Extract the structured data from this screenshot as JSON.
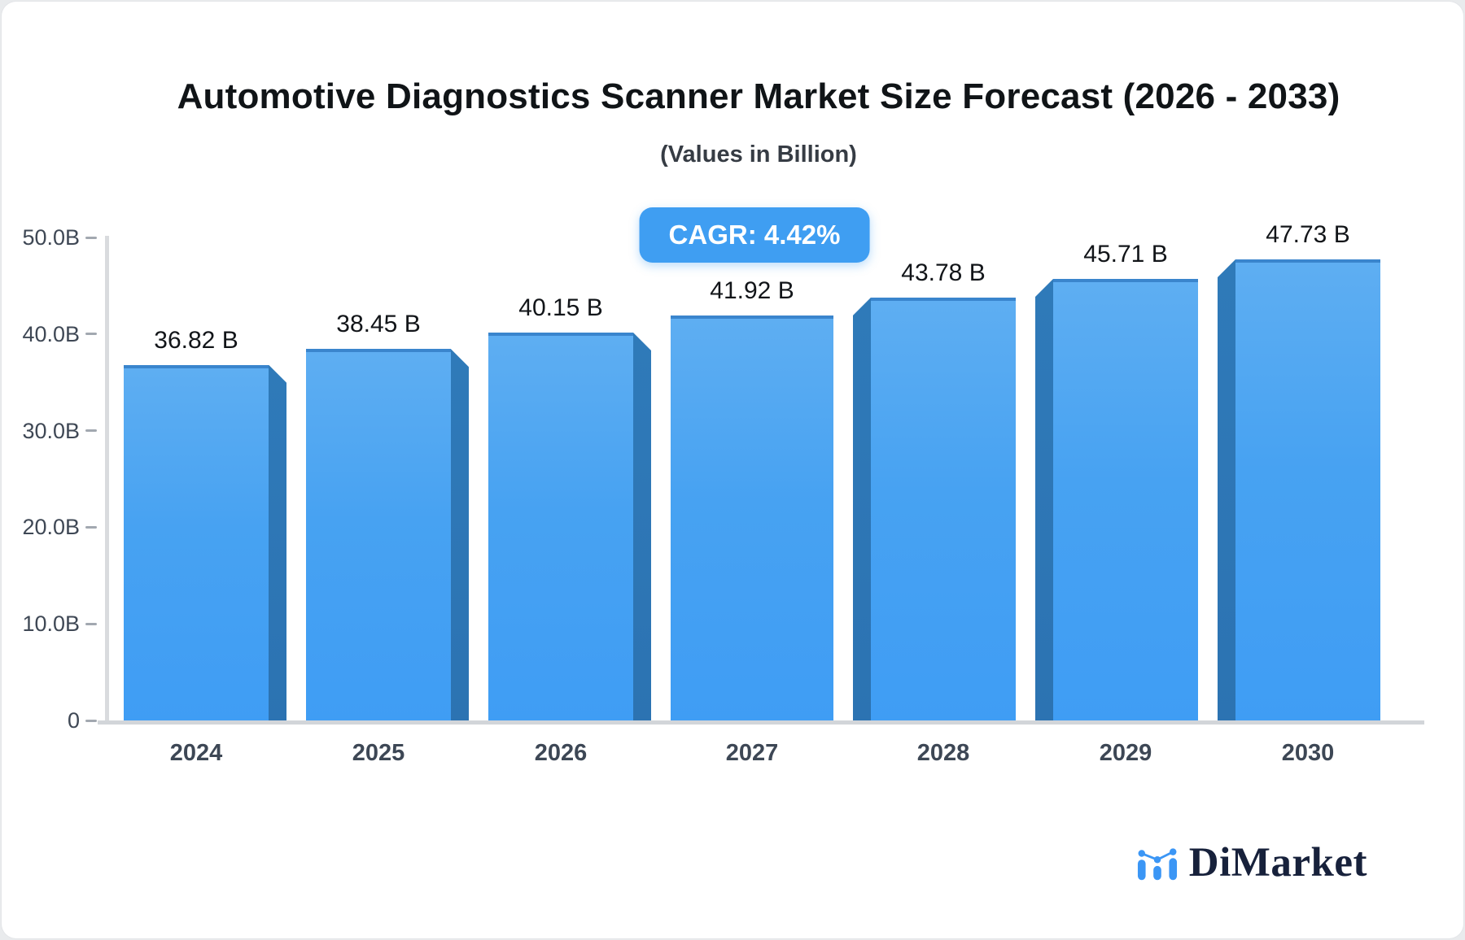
{
  "header": {
    "title": "Automotive Diagnostics Scanner Market Size Forecast (2026 - 2033)",
    "subtitle": "(Values in Billion)"
  },
  "cagr_badge": {
    "label": "CAGR: 4.42%",
    "background": "#3f9ef2",
    "text_color": "#ffffff"
  },
  "chart_data": {
    "type": "bar",
    "title": "Automotive Diagnostics Scanner Market Size Forecast (2026 - 2033)",
    "subtitle": "(Values in Billion)",
    "categories": [
      "2024",
      "2025",
      "2026",
      "2027",
      "2028",
      "2029",
      "2030"
    ],
    "values": [
      36.82,
      38.45,
      40.15,
      41.92,
      43.78,
      45.71,
      47.73
    ],
    "value_labels": [
      "36.82 B",
      "38.45 B",
      "40.15 B",
      "41.92 B",
      "43.78 B",
      "45.71 B",
      "47.73 B"
    ],
    "xlabel": "",
    "ylabel": "",
    "ylim": [
      0,
      50
    ],
    "ytick_values": [
      0,
      10,
      20,
      30,
      40,
      50
    ],
    "ytick_labels": [
      "0",
      "10.0B",
      "20.0B",
      "30.0B",
      "40.0B",
      "50.0B"
    ],
    "grid": false,
    "legend": null,
    "annotation": "CAGR: 4.42%",
    "style": {
      "bar_face_top": "#5eaef2",
      "bar_face_bottom": "#3f9df4",
      "bar_top_edge": "#3a85cd",
      "bar_side_3d": "#2d76b6",
      "axis_line": "#d5d8dc",
      "tick_color": "#a2a8b0",
      "label_color": "#3d4755",
      "value_label_color": "#121519",
      "effect": "3d-perspective-sides-face-away-from-center"
    }
  },
  "logo": {
    "text": "DiMarket",
    "icon": "bar-chart-logo-icon",
    "icon_color": "#3b96f5",
    "text_color": "#17213b"
  }
}
